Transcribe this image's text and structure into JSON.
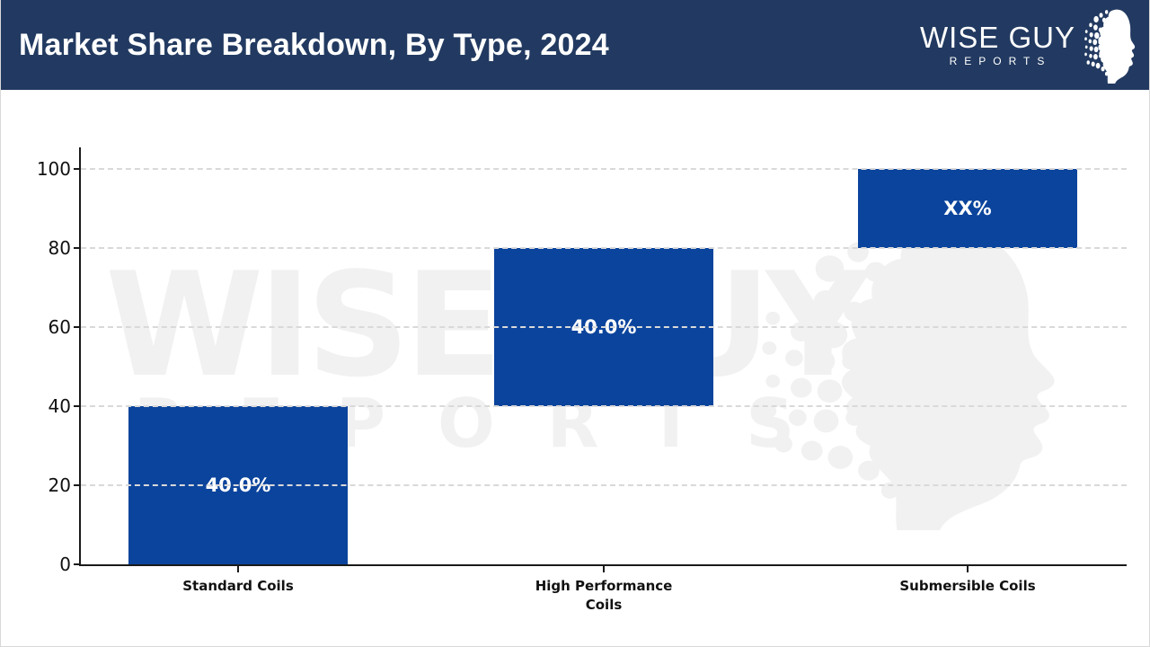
{
  "header": {
    "title": "Market Share Breakdown, By Type, 2024",
    "logo": {
      "name": "WISE GUY",
      "tagline": "REPORTS"
    }
  },
  "watermark": {
    "big_text": "WISE GUY",
    "small_text": "REPORTS",
    "face_icon": "dotted-head-profile"
  },
  "colors": {
    "header_bg": "#223a61",
    "bar_fill": "#0b449c",
    "bar_label_text": "#ffffff",
    "grid_line": "#d9d9d9",
    "axis_line": "#1a1a1a",
    "tick_label": "#111111",
    "watermark": "#f1f1f2",
    "page_bg": "#ffffff"
  },
  "chart_data": {
    "type": "bar",
    "subtype": "waterfall",
    "title": "Market Share Breakdown, By Type, 2024",
    "categories": [
      "Standard Coils",
      "High Performance Coils",
      "Submersible Coils"
    ],
    "category_label_lines": [
      [
        "Standard Coils"
      ],
      [
        "High Performance",
        "Coils"
      ],
      [
        "Submersible Coils"
      ]
    ],
    "segments": [
      {
        "category": "Standard Coils",
        "start": 0,
        "end": 40,
        "value": 40,
        "label": "40.0%"
      },
      {
        "category": "High Performance Coils",
        "start": 40,
        "end": 80,
        "value": 40,
        "label": "40.0%"
      },
      {
        "category": "Submersible Coils",
        "start": 80,
        "end": 100,
        "value": 20,
        "label": "XX%"
      }
    ],
    "ylim": [
      0,
      100
    ],
    "yticks": [
      0,
      20,
      40,
      60,
      80,
      100
    ],
    "grid": "horizontal-dashed",
    "legend": "none"
  }
}
